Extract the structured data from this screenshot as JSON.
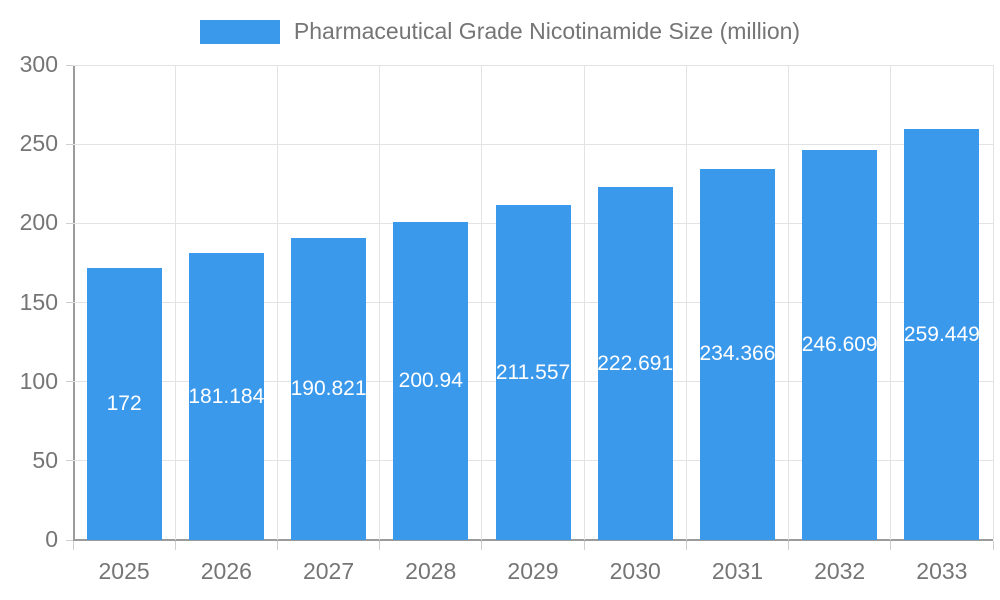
{
  "legend": {
    "label": "Pharmaceutical Grade Nicotinamide Size (million)"
  },
  "chart_data": {
    "type": "bar",
    "title": "Pharmaceutical Grade Nicotinamide Size (million)",
    "categories": [
      "2025",
      "2026",
      "2027",
      "2028",
      "2029",
      "2030",
      "2031",
      "2032",
      "2033"
    ],
    "values": [
      172,
      181.184,
      190.821,
      200.94,
      211.557,
      222.691,
      234.366,
      246.609,
      259.449
    ],
    "value_labels": [
      "172",
      "181.184",
      "190.821",
      "200.94",
      "211.557",
      "222.691",
      "234.366",
      "246.609",
      "259.449"
    ],
    "xlabel": "",
    "ylabel": "",
    "ylim": [
      0,
      300
    ],
    "yticks": [
      0,
      50,
      100,
      150,
      200,
      250,
      300
    ],
    "grid": true,
    "legend_position": "top",
    "colors": {
      "bar": "#3b99ec",
      "bar_label": "#ffffff",
      "axis_text": "#757575",
      "gridline": "#e3e3e3",
      "axis_line": "#9b9b9b",
      "tick": "#cfcfcf"
    }
  }
}
